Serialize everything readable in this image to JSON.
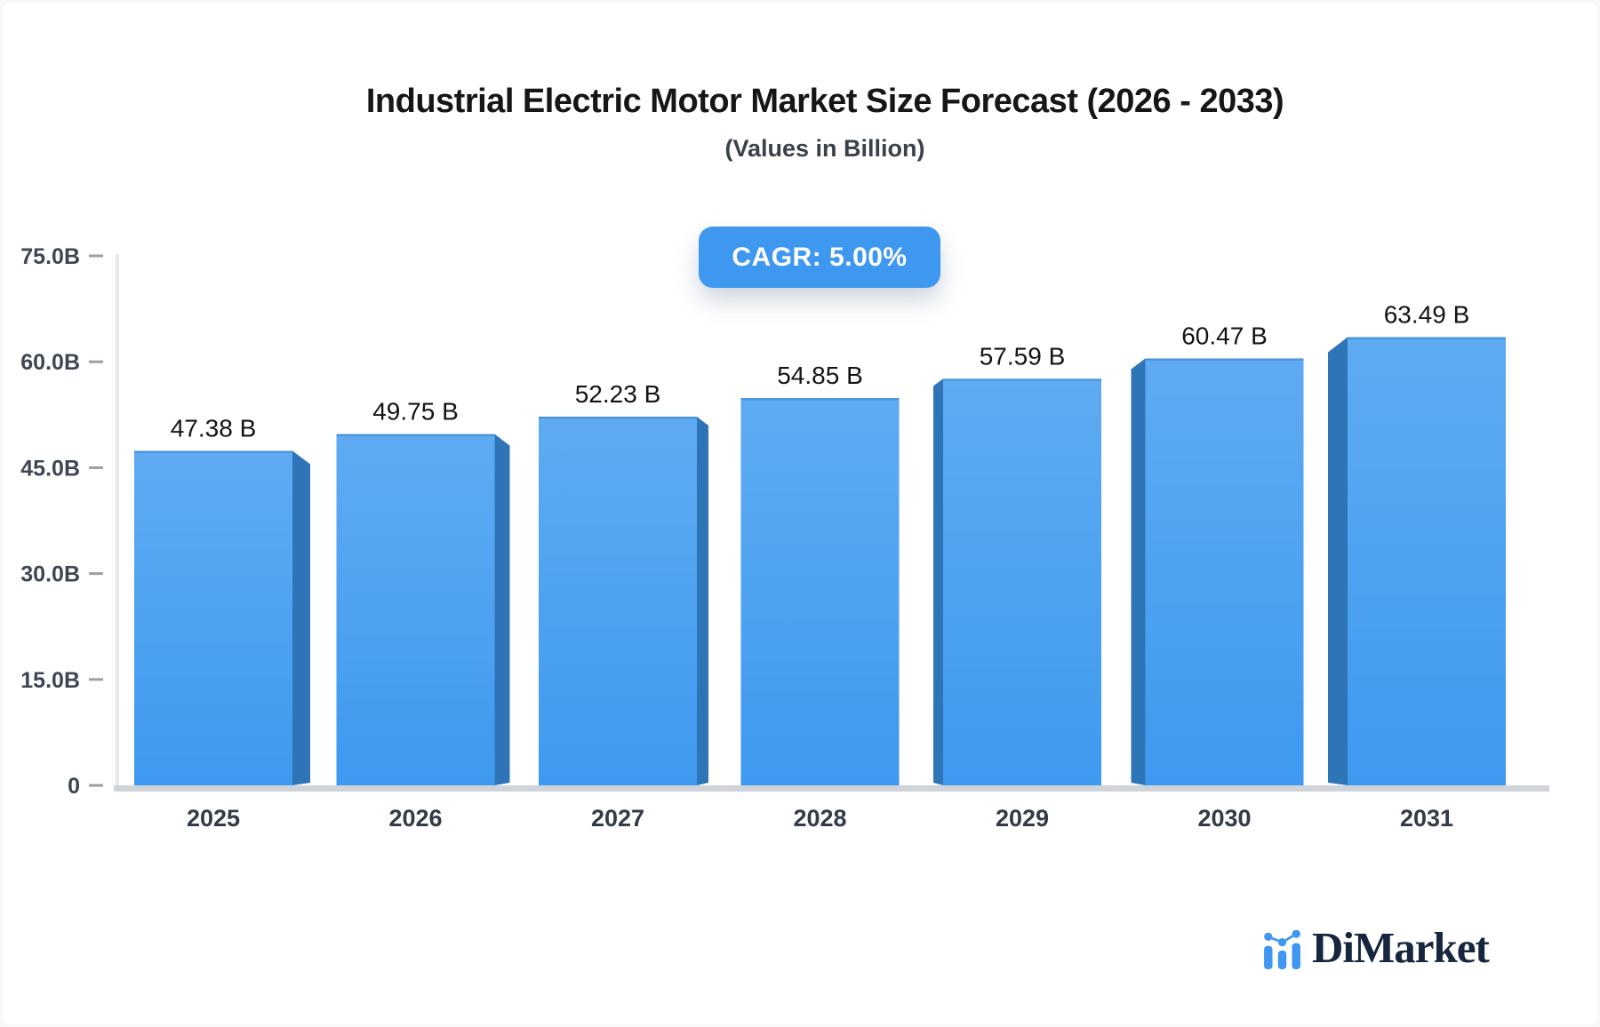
{
  "header": {
    "title": "Industrial Electric Motor Market Size Forecast (2026 - 2033)",
    "subtitle": "(Values in Billion)"
  },
  "badge": {
    "label": "CAGR: 5.00%",
    "background": "#3e98f0",
    "text_color": "#ffffff"
  },
  "chart_data": {
    "type": "bar",
    "title": "Industrial Electric Motor Market Size Forecast (2026 - 2033)",
    "subtitle": "(Values in Billion)",
    "cagr": "5.00%",
    "categories": [
      "2025",
      "2026",
      "2027",
      "2028",
      "2029",
      "2030",
      "2031"
    ],
    "values": [
      47.38,
      49.75,
      52.23,
      54.85,
      57.59,
      60.47,
      63.49
    ],
    "value_labels": [
      "47.38 B",
      "49.75 B",
      "52.23 B",
      "54.85 B",
      "57.59 B",
      "60.47 B",
      "63.49 B"
    ],
    "ylim": [
      0,
      75
    ],
    "yticks": [
      {
        "value": 75,
        "label": "75.0B"
      },
      {
        "value": 60,
        "label": "60.0B"
      },
      {
        "value": 45,
        "label": "45.0B"
      },
      {
        "value": 30,
        "label": "30.0B"
      },
      {
        "value": 15,
        "label": "15.0B"
      },
      {
        "value": 0,
        "label": "0"
      }
    ],
    "grid": false,
    "legend": false,
    "style": {
      "bar_gradient_top": "#5fabf2",
      "bar_gradient_bottom": "#3e99f0",
      "bar_side": "#2d75b6",
      "bar_top_edge": "#4a95dd",
      "axis_line": "#e4e7eb",
      "baseline": "#cfd4da",
      "tick_dash": "#9aa1a9",
      "tick_text": "#3e4553",
      "category_text": "#333b48",
      "value_text": "#141414"
    }
  },
  "footer": {
    "brand": "DiMarket",
    "logo_icon": "mini-bar-line-chart-icon",
    "brand_color": "#16263f",
    "icon_color": "#3f97f2"
  }
}
